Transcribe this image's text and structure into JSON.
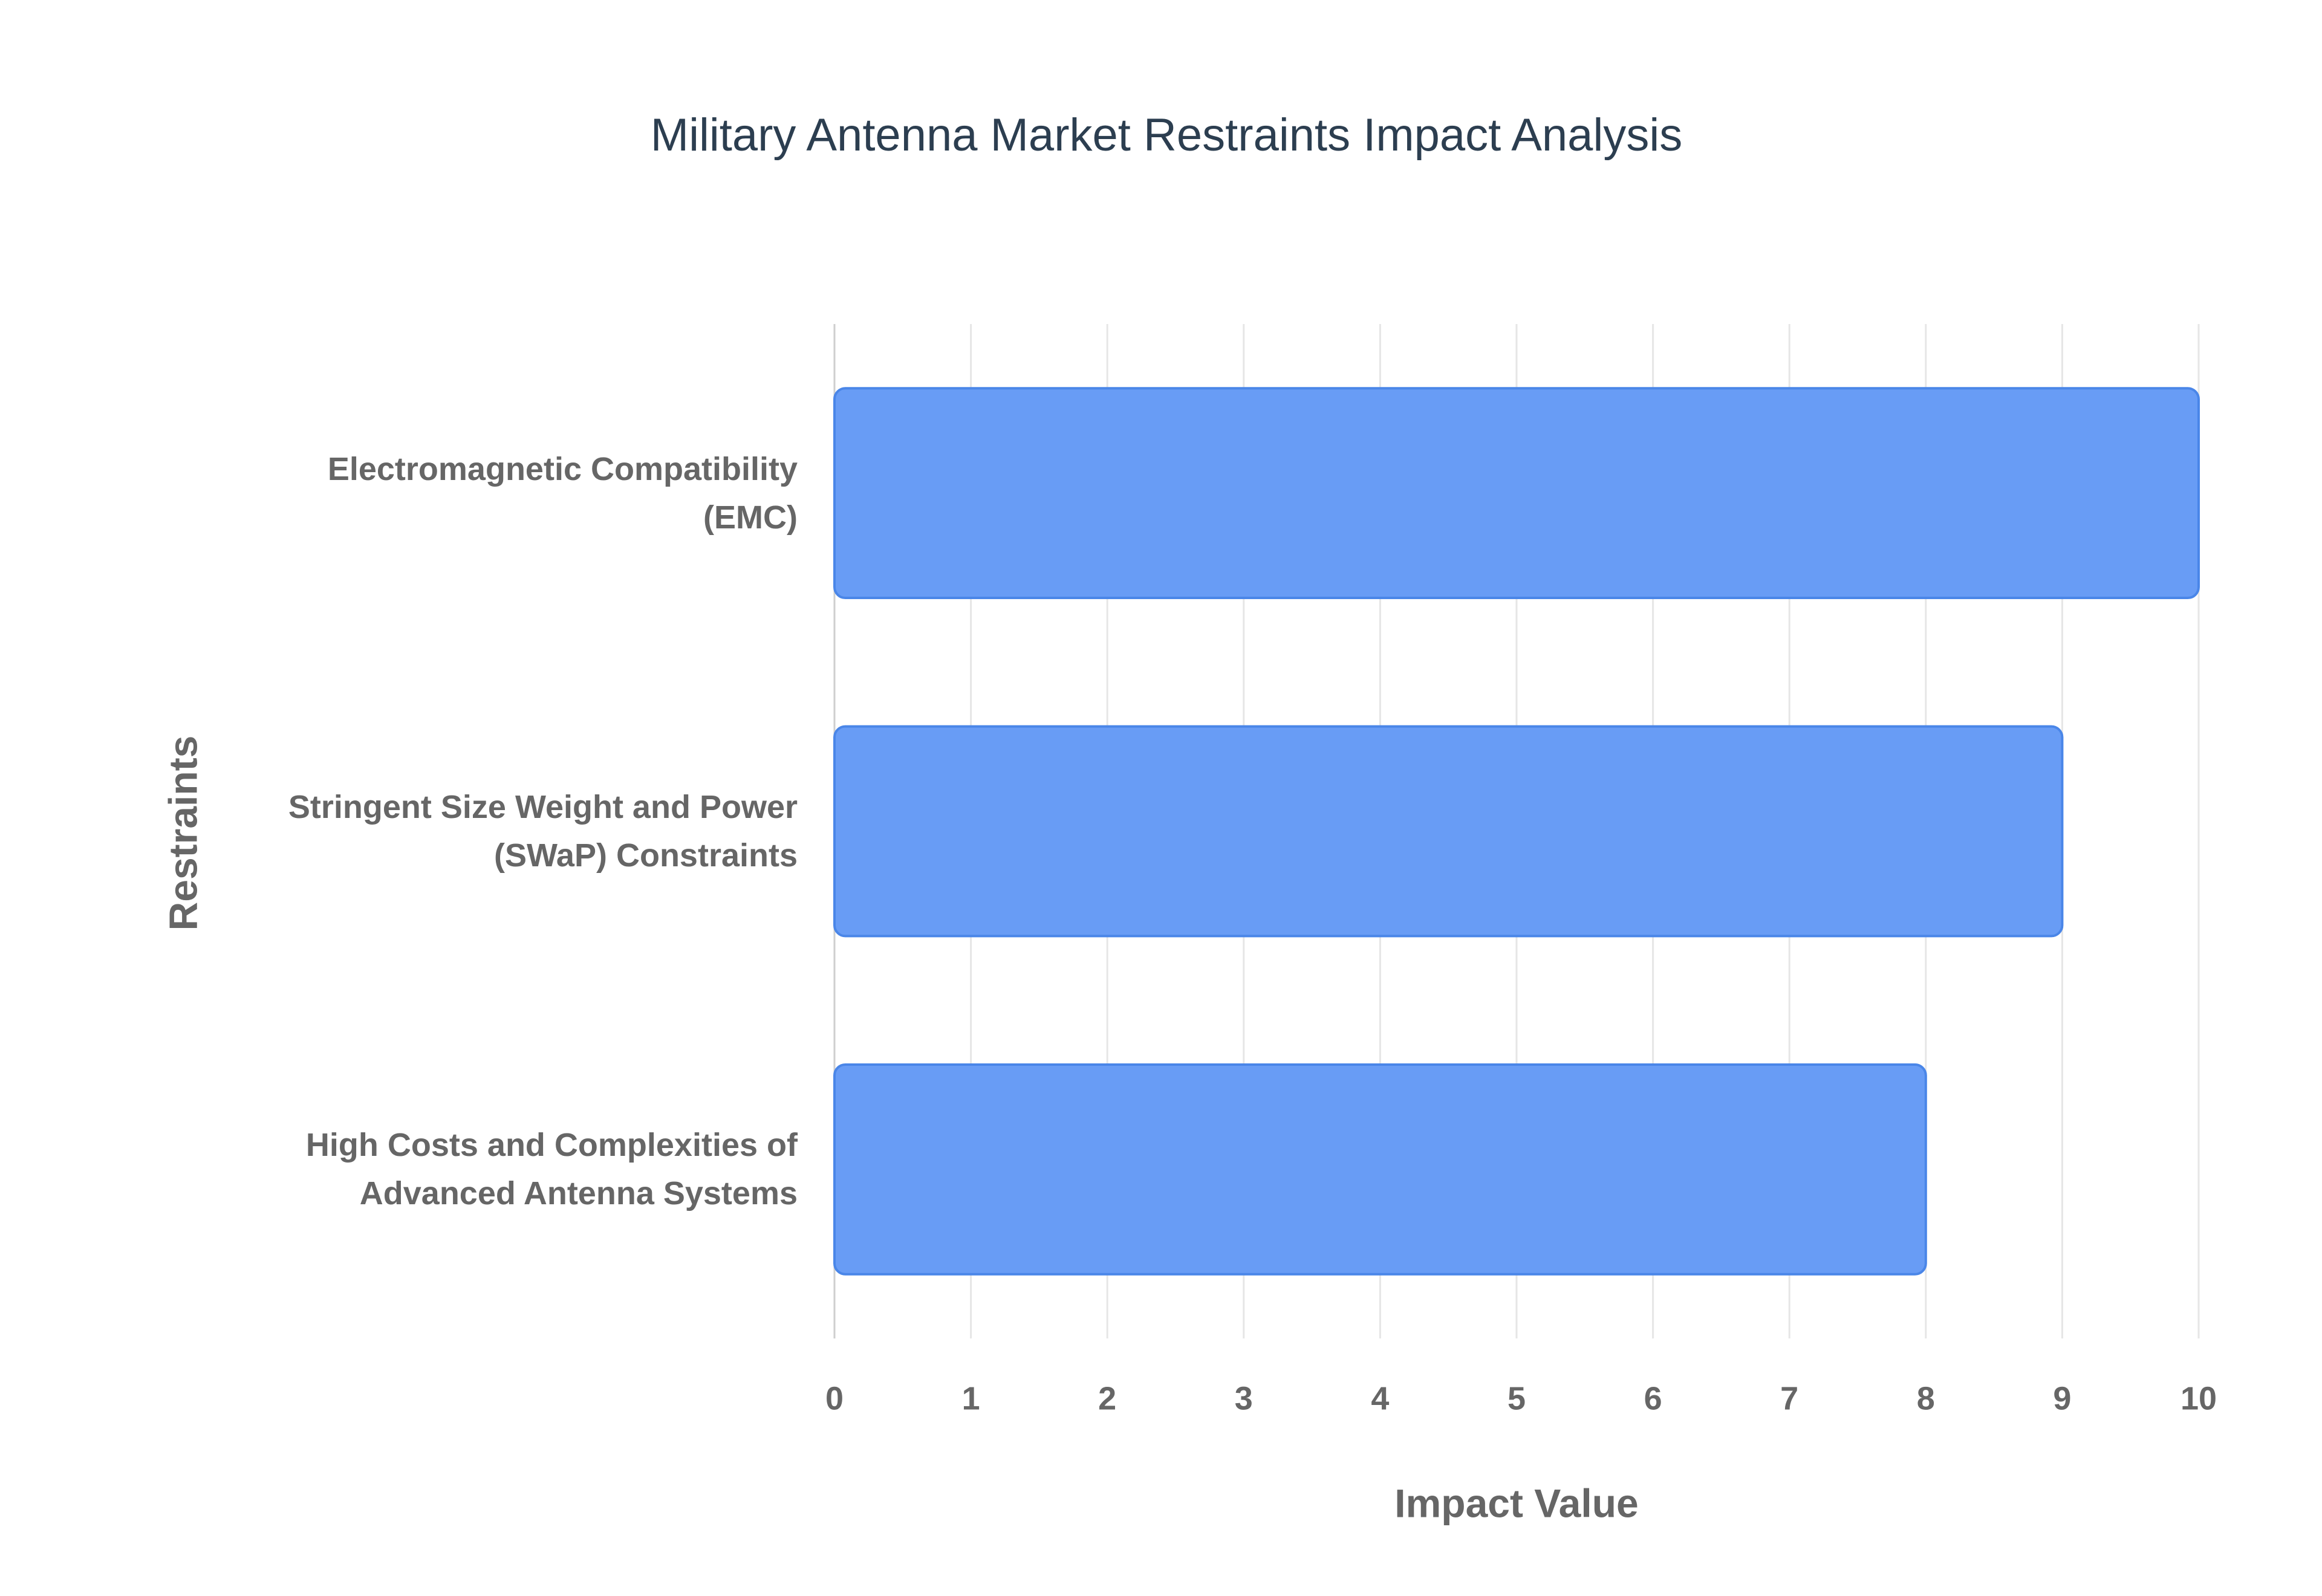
{
  "chart_data": {
    "type": "hbar",
    "title": "Military Antenna Market Restraints Impact Analysis",
    "categories": [
      "Electromagnetic Compatibility (EMC)",
      "Stringent Size Weight and Power (SWaP) Constraints",
      "High Costs and Complexities of Advanced Antenna Systems"
    ],
    "values": [
      10,
      9,
      8
    ],
    "color": "#6399f5",
    "x_label": "Impact Value",
    "y_label": "Restraints",
    "xlim": [
      0,
      10
    ],
    "xticks": [
      0,
      1,
      2,
      3,
      4,
      5,
      6,
      7,
      8,
      9,
      10
    ],
    "grid": true
  }
}
